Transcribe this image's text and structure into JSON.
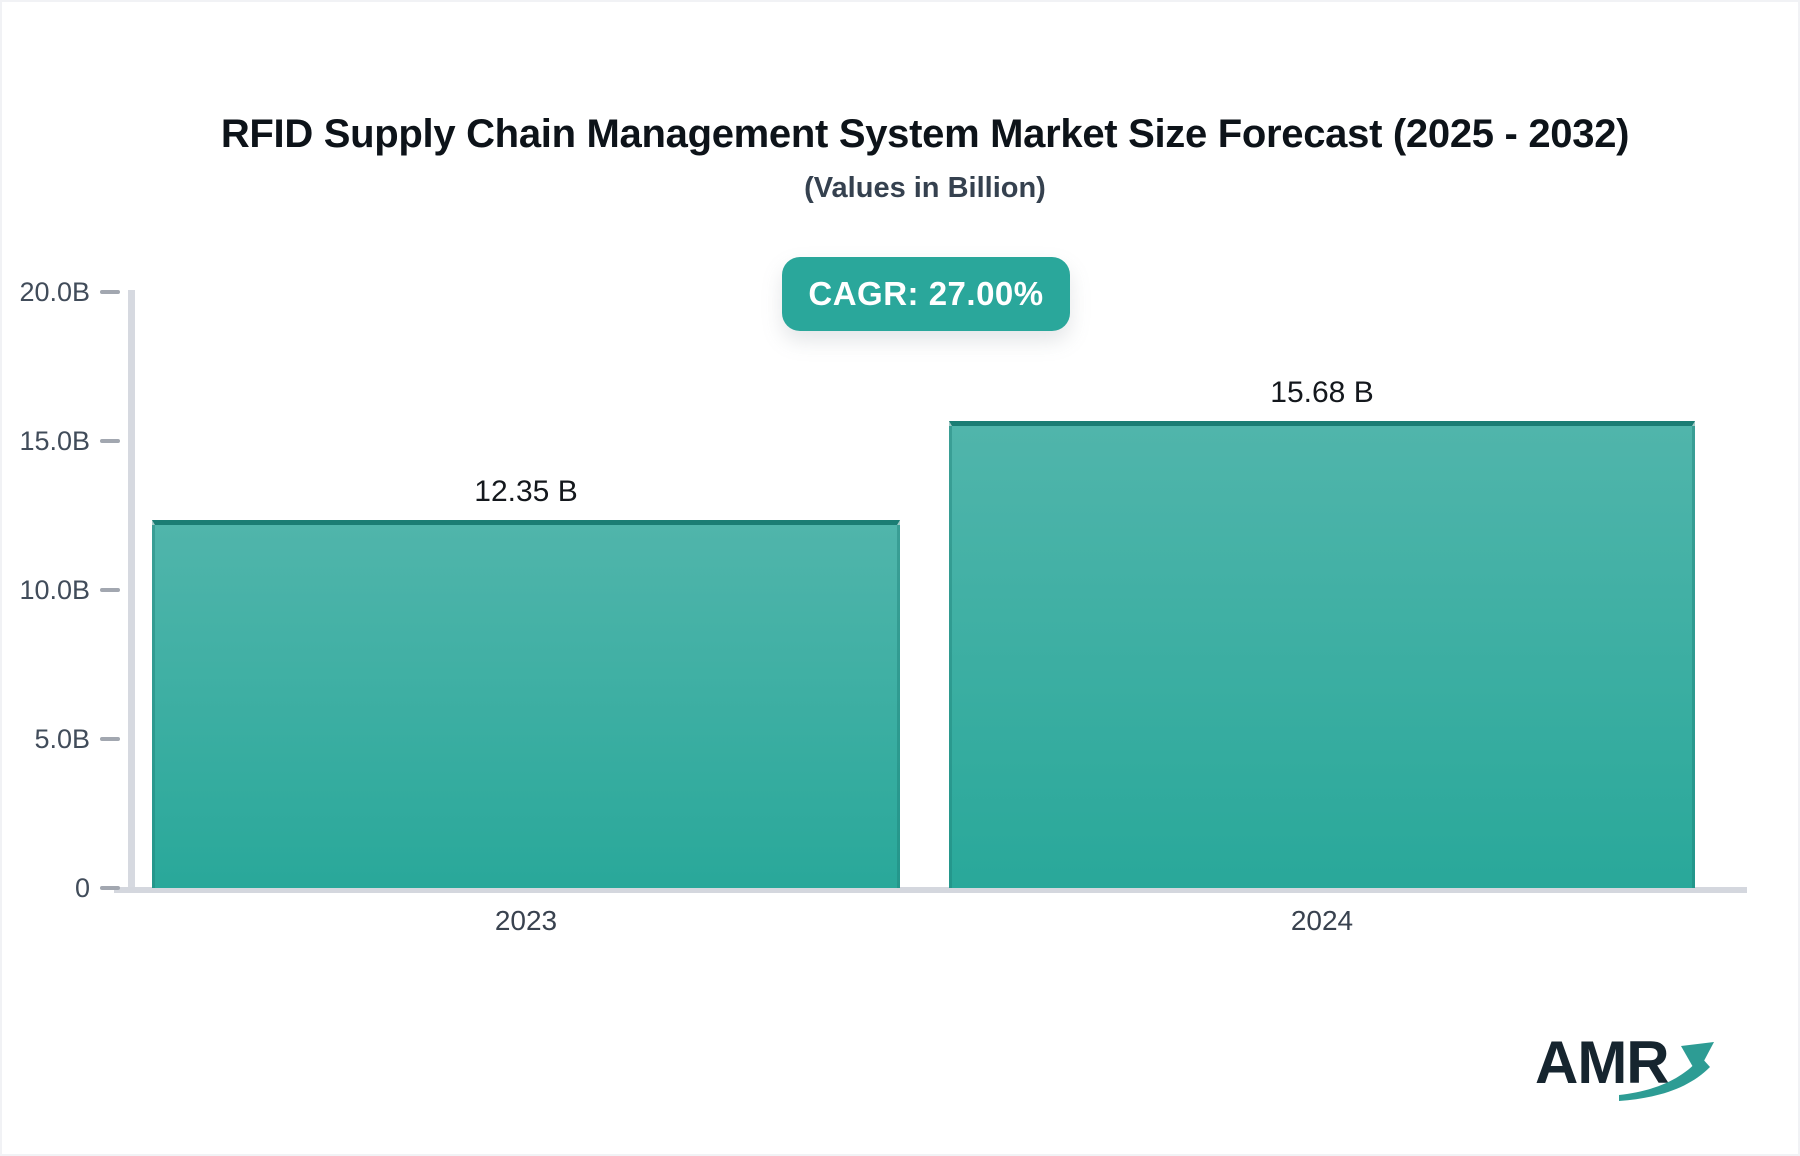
{
  "header": {
    "title": "RFID Supply Chain Management System Market Size Forecast (2025 - 2032)",
    "subtitle": "(Values in Billion)"
  },
  "cagr_badge": {
    "label": "CAGR: 27.00%",
    "background": "#2aa79b",
    "text_color": "#ffffff"
  },
  "chart_data": {
    "type": "bar",
    "title": "RFID Supply Chain Management System Market Size Forecast (2025 - 2032)",
    "subtitle": "(Values in Billion)",
    "categories": [
      "2023",
      "2024"
    ],
    "values": [
      12.35,
      15.68
    ],
    "value_labels": [
      "12.35 B",
      "15.68 B"
    ],
    "xlabel": "",
    "ylabel": "",
    "ylim": [
      0,
      20
    ],
    "yticks": [
      {
        "label": "20.0B",
        "value": 20
      },
      {
        "label": "15.0B",
        "value": 15
      },
      {
        "label": "10.0B",
        "value": 10
      },
      {
        "label": "5.0B",
        "value": 5
      },
      {
        "label": "0",
        "value": 0
      }
    ],
    "grid": false,
    "legend": false,
    "annotations": [
      "CAGR: 27.00%"
    ],
    "colors": {
      "bar_gradient_top": "#50b5ab",
      "bar_gradient_bottom": "#29a89a",
      "bar_border": "#1b7d74",
      "axis_line": "#d6d9e0",
      "tick_dash": "#a2a7b0",
      "tick_label": "#414c5a"
    }
  },
  "branding": {
    "logo_text": "AMR",
    "logo_color": "#16252f",
    "arrow_color": "#2d9c94"
  }
}
